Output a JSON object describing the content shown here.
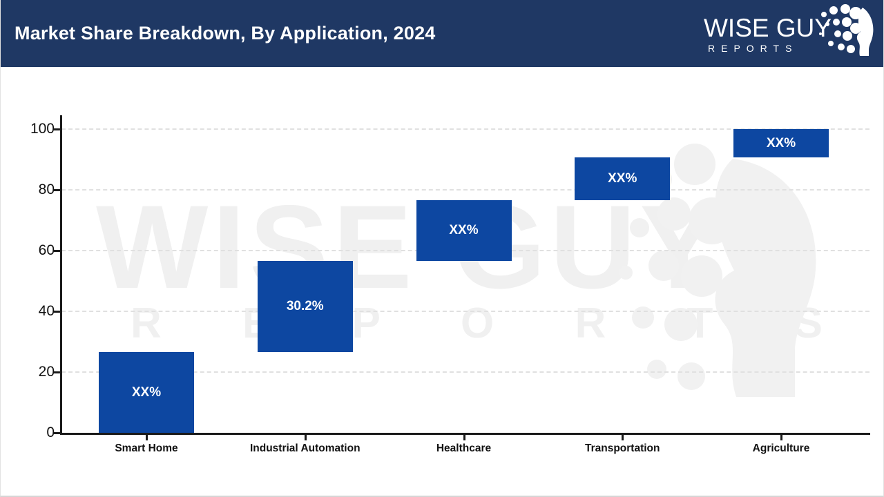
{
  "header": {
    "title": "Market Share Breakdown, By Application, 2024",
    "logo": {
      "line1": "WISE GUY",
      "line2": "R E P O R T S"
    }
  },
  "watermark": {
    "line1": "WISE GUY",
    "line2": "R E P O R T S"
  },
  "colors": {
    "header_bg": "#1f3864",
    "bar": "#0d47a1",
    "bar_label": "#ffffff",
    "grid": "#e0e0e0",
    "axis": "#1a1a1a",
    "watermark": "#f0f0f0"
  },
  "chart_data": {
    "type": "bar",
    "variant": "floating-segment waterfall of market share percentages",
    "title": "Market Share Breakdown, By Application, 2024",
    "xlabel": "",
    "ylabel": "",
    "categories": [
      "Smart Home",
      "Industrial Automation",
      "Healthcare",
      "Transportation",
      "Agriculture"
    ],
    "bars": [
      {
        "category": "Smart Home",
        "start": 0,
        "end": 26.5,
        "label": "XX%"
      },
      {
        "category": "Industrial Automation",
        "start": 26.5,
        "end": 56.7,
        "label": "30.2%"
      },
      {
        "category": "Healthcare",
        "start": 56.7,
        "end": 76.7,
        "label": "XX%"
      },
      {
        "category": "Transportation",
        "start": 76.7,
        "end": 90.6,
        "label": "XX%"
      },
      {
        "category": "Agriculture",
        "start": 90.6,
        "end": 100,
        "label": "XX%"
      }
    ],
    "yticks": [
      0,
      20,
      40,
      60,
      80,
      100
    ],
    "ylim": [
      0,
      104
    ],
    "grid": {
      "horizontal": true,
      "style": "dashed",
      "ticks_with_grid": [
        20,
        40,
        60,
        80,
        100
      ]
    },
    "legend": "none"
  }
}
